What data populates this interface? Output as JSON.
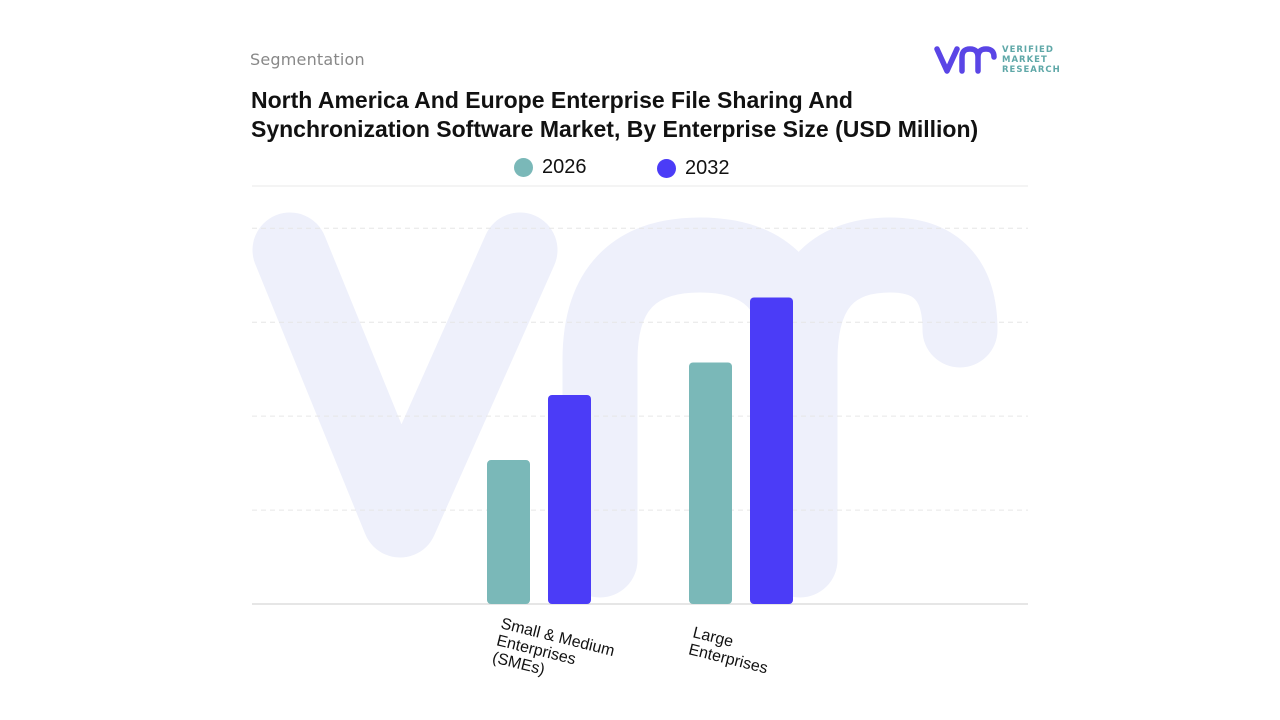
{
  "header": {
    "segment_label": "Segmentation",
    "title_line1": "North America And Europe Enterprise File Sharing And",
    "title_line2": "Synchronization Software Market, By Enterprise Size (USD Million)"
  },
  "logo": {
    "line1": "VERIFIED",
    "line2": "MARKET",
    "line3": "RESEARCH"
  },
  "colors": {
    "series_2026": "#7ab8b8",
    "series_2032": "#4b3cf7",
    "logo_primary": "#5a45e6",
    "logo_secondary": "#5fa8a8"
  },
  "chart_data": {
    "type": "bar",
    "title": "North America And Europe Enterprise File Sharing And Synchronization Software Market, By Enterprise Size (USD Million)",
    "categories": [
      "Small & Medium Enterprises (SMEs)",
      "Large Enterprises"
    ],
    "category_lines": [
      [
        "Small & Medium",
        "Enterprises",
        "(SMEs)"
      ],
      [
        "Large",
        "Enterprises"
      ]
    ],
    "series": [
      {
        "name": "2026",
        "values": [
          31,
          52
        ]
      },
      {
        "name": "2032",
        "values": [
          45,
          66
        ]
      }
    ],
    "ylim": [
      0,
      90
    ],
    "grid": true,
    "legend": "top-center",
    "xlabel": "",
    "ylabel": ""
  }
}
